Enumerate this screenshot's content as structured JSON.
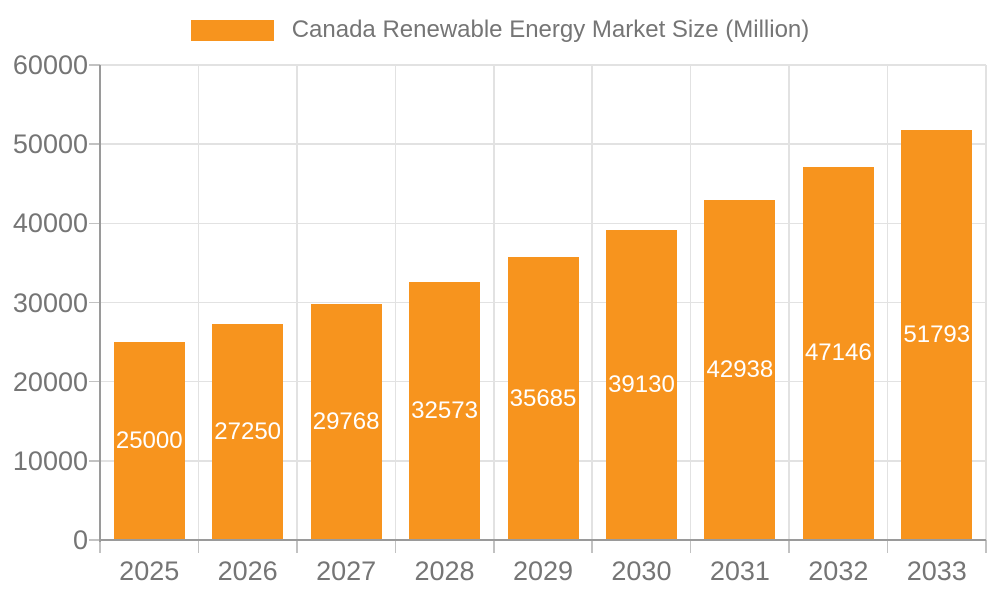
{
  "legend": {
    "label": "Canada Renewable Energy Market Size (Million)"
  },
  "colors": {
    "bar": "#f7941e",
    "value_label": "#ffffff",
    "axis_text": "#757575",
    "axis_line": "#9a9a9a",
    "grid_line": "#e2e2e2",
    "tick": "#c2c2c2"
  },
  "chart_data": {
    "type": "bar",
    "title": "Canada Renewable Energy Market Size (Million)",
    "series_name": "Canada Renewable Energy Market Size (Million)",
    "categories": [
      "2025",
      "2026",
      "2027",
      "2028",
      "2029",
      "2030",
      "2031",
      "2032",
      "2033"
    ],
    "values": [
      25000,
      27250,
      29768,
      32573,
      35685,
      39130,
      42938,
      47146,
      51793
    ],
    "value_labels": [
      "25000",
      "27250",
      "29768",
      "32573",
      "35685",
      "39130",
      "42938",
      "47146",
      "51793"
    ],
    "xlabel": "",
    "ylabel": "",
    "ylim": [
      0,
      60000
    ],
    "ytick_step": 10000,
    "y_tick_labels": [
      "0",
      "10000",
      "20000",
      "30000",
      "40000",
      "50000",
      "60000"
    ],
    "grid": true,
    "legend_position": "top",
    "bar_label_position": "inside-center"
  }
}
